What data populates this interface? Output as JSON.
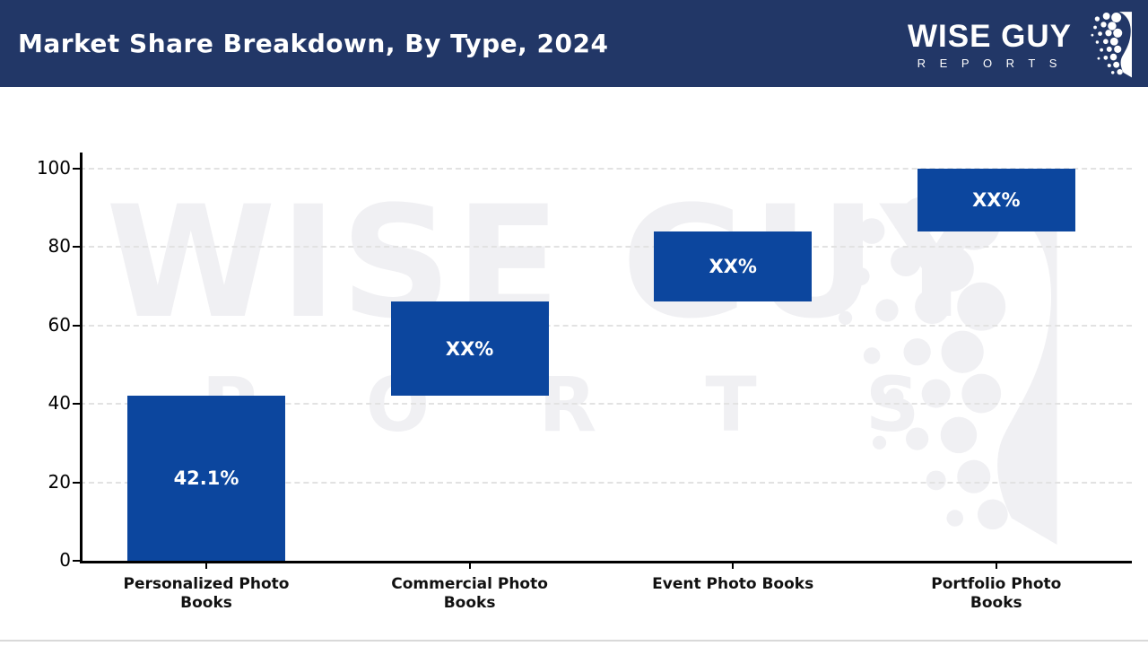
{
  "header": {
    "title": "Market Share Breakdown, By Type, 2024",
    "logo_line1": "WISE GUY",
    "logo_line2": "R E P O R T S"
  },
  "watermark": {
    "line1": "WISE GUY",
    "line2": "P O R T S"
  },
  "colors": {
    "header_bg": "#223767",
    "bar_blue": "#0c469e",
    "grid_gray": "#e2e2e2",
    "watermark_gray": "#f0f0f3"
  },
  "chart_data": {
    "type": "bar",
    "subtype": "waterfall",
    "title": "Market Share Breakdown, By Type, 2024",
    "xlabel": "",
    "ylabel": "",
    "ylim": [
      0,
      105
    ],
    "yticks": [
      0,
      20,
      40,
      60,
      80,
      100
    ],
    "grid": true,
    "legend": false,
    "bar_color": "#0c469e",
    "value_label_color": "#ffffff",
    "categories": [
      "Personalized Photo Books",
      "Commercial Photo Books",
      "Event Photo Books",
      "Portfolio Photo Books"
    ],
    "segments": [
      {
        "category": "Personalized Photo Books",
        "start": 0,
        "end": 42.1,
        "value": 42.1,
        "label": "42.1%"
      },
      {
        "category": "Commercial Photo Books",
        "start": 42.1,
        "end": 66,
        "value": 23.9,
        "label": "XX%"
      },
      {
        "category": "Event Photo Books",
        "start": 66,
        "end": 84,
        "value": 18,
        "label": "XX%"
      },
      {
        "category": "Portfolio Photo Books",
        "start": 84,
        "end": 100,
        "value": 16,
        "label": "XX%"
      }
    ]
  }
}
